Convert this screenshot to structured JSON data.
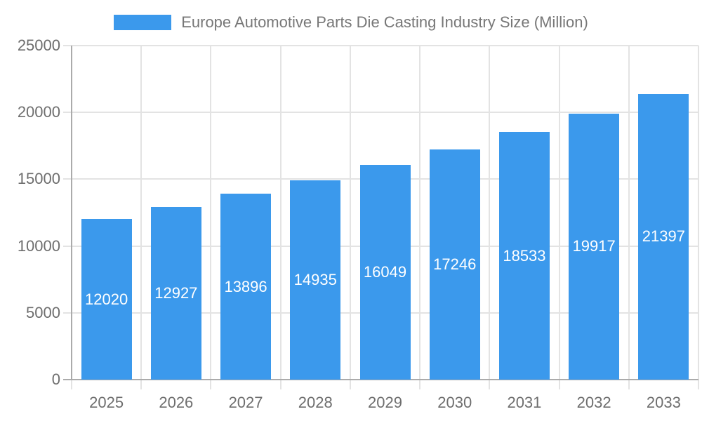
{
  "chart_data": {
    "type": "bar",
    "title": "Europe Automotive Parts Die Casting Industry Size (Million)",
    "categories": [
      "2025",
      "2026",
      "2027",
      "2028",
      "2029",
      "2030",
      "2031",
      "2032",
      "2033"
    ],
    "values": [
      12020,
      12927,
      13896,
      14935,
      16049,
      17246,
      18533,
      19917,
      21397
    ],
    "xlabel": "",
    "ylabel": "",
    "ylim": [
      0,
      25000
    ],
    "yticks": [
      0,
      5000,
      10000,
      15000,
      20000,
      25000
    ],
    "legend_position": "top",
    "grid": true,
    "value_labels": "inside-center",
    "colors": {
      "bar": "#3B99EC",
      "grid": "#e3e3e3",
      "axis": "#ababab",
      "tick_text": "#6e6e6e",
      "legend_text": "#777777",
      "bar_label_text": "#ffffff",
      "background": "#ffffff"
    }
  }
}
